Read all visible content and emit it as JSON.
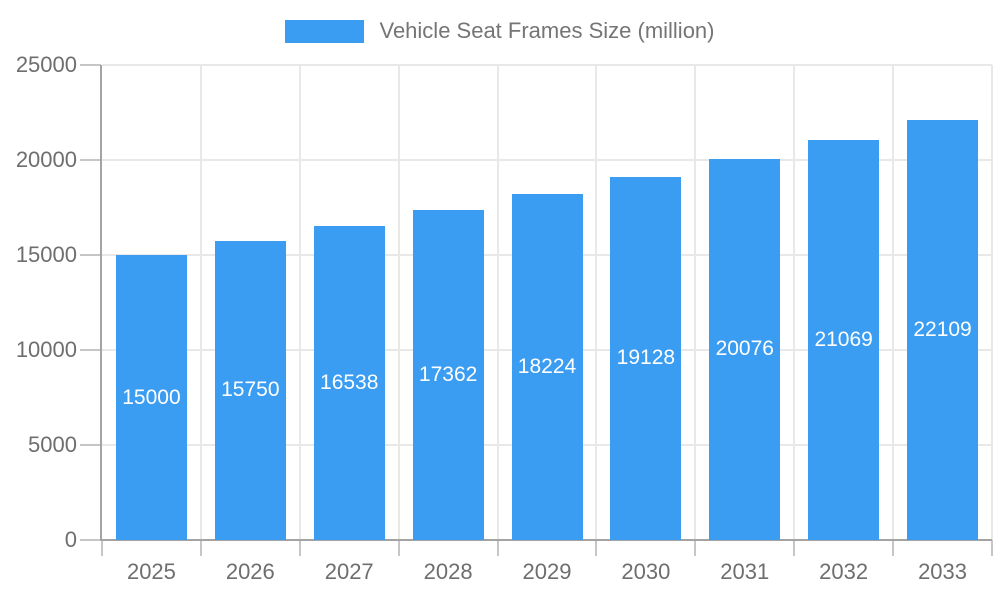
{
  "chart_data": {
    "type": "bar",
    "title": "Vehicle Seat Frames Size (million)",
    "legend": {
      "position": "top",
      "entries": [
        "Vehicle Seat Frames Size (million)"
      ]
    },
    "categories": [
      "2025",
      "2026",
      "2027",
      "2028",
      "2029",
      "2030",
      "2031",
      "2032",
      "2033"
    ],
    "series": [
      {
        "name": "Vehicle Seat Frames Size (million)",
        "values": [
          15000,
          15750,
          16538,
          17362,
          18224,
          19128,
          20076,
          21069,
          22109
        ],
        "color": "#3B9DF2"
      }
    ],
    "bar_value_labels_visible": true,
    "xlabel": "",
    "ylabel": "",
    "ylim": [
      0,
      25000
    ],
    "yticks": [
      0,
      5000,
      10000,
      15000,
      20000,
      25000
    ],
    "grid": true
  },
  "colors": {
    "bar": "#3B9DF2",
    "bar_label": "#FFFFFF",
    "title": "#757575",
    "axis_label": "#6E6E6E",
    "gridline": "#E8E8E8",
    "axis_line": "#A3A3A3",
    "tick": "#C6C6C6",
    "background": "#FFFFFF"
  }
}
